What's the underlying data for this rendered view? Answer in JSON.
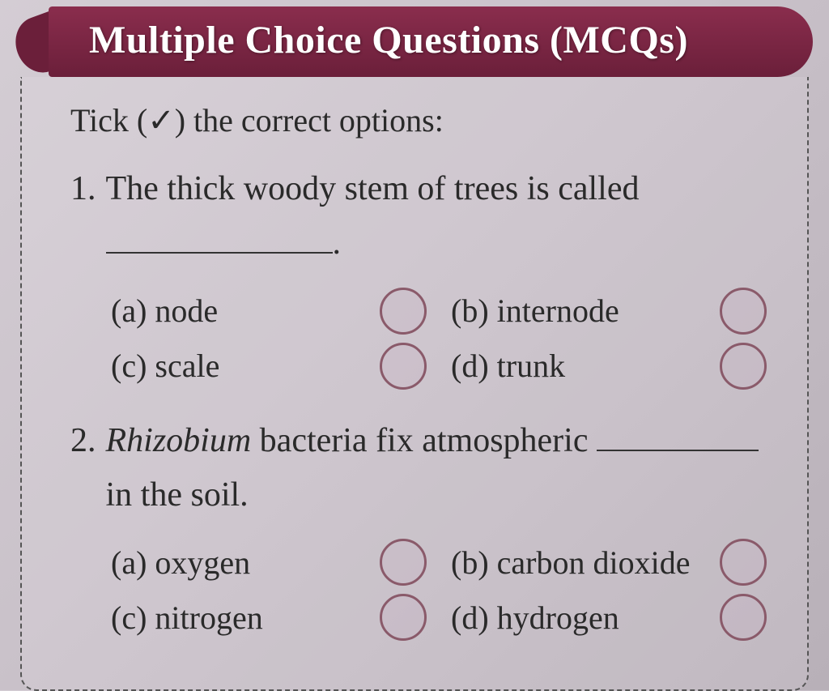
{
  "banner": {
    "title": "Multiple Choice Questions (MCQs)",
    "bg_gradient_top": "#8a2d4d",
    "bg_gradient_bottom": "#6b1f3a",
    "text_color": "#ffffff",
    "fontsize": 48
  },
  "instructions": {
    "text": "Tick (✓) the correct options:",
    "fontsize": 40,
    "color": "#2a2a2a"
  },
  "questions": [
    {
      "number": "1.",
      "text_before": "The thick woody stem of trees is called",
      "text_after": ".",
      "blank_width": 280,
      "options": [
        {
          "key": "(a)",
          "label": "node"
        },
        {
          "key": "(b)",
          "label": "internode"
        },
        {
          "key": "(c)",
          "label": "scale"
        },
        {
          "key": "(d)",
          "label": "trunk"
        }
      ]
    },
    {
      "number": "2.",
      "italic_prefix": "Rhizobium",
      "text_before": " bacteria fix atmospheric ",
      "text_after": " in the soil.",
      "blank_width": 200,
      "options": [
        {
          "key": "(a)",
          "label": "oxygen"
        },
        {
          "key": "(b)",
          "label": "carbon dioxide"
        },
        {
          "key": "(c)",
          "label": "nitrogen"
        },
        {
          "key": "(d)",
          "label": "hydrogen"
        }
      ]
    }
  ],
  "styling": {
    "page_bg_gradient": [
      "#d4cdd4",
      "#c8c0c8",
      "#b8b0b8"
    ],
    "border_style": "dashed",
    "border_color": "#555555",
    "bubble_border_color": "#8a5a6a",
    "bubble_bg": "rgba(200,180,195,0.3)",
    "bubble_size": 58,
    "option_fontsize": 40,
    "question_fontsize": 42,
    "text_color": "#2a2a2a"
  }
}
